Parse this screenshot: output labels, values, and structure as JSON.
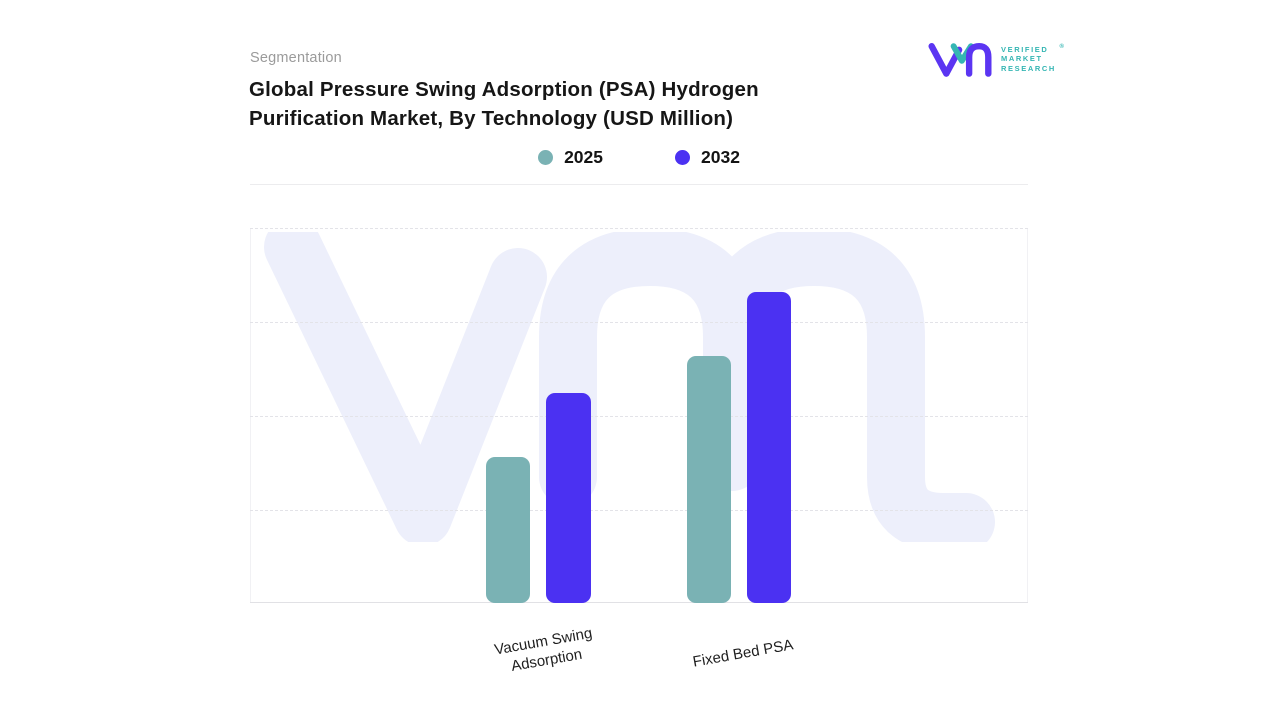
{
  "header": {
    "eyebrow": "Segmentation",
    "title_line1": "Global Pressure Swing Adsorption (PSA) Hydrogen",
    "title_line2": "Purification Market, By Technology (USD Million)"
  },
  "brand": {
    "name_line1": "VERIFIED",
    "name_line2": "MARKET",
    "name_line3": "RESEARCH",
    "registered": "®",
    "purple": "#5b35f2",
    "teal": "#35b6b3"
  },
  "chart_data": {
    "type": "bar",
    "title": "Global Pressure Swing Adsorption (PSA) Hydrogen Purification Market, By Technology (USD Million)",
    "units": "USD Million",
    "categories": [
      "Vacuum Swing Adsorption",
      "Fixed Bed PSA"
    ],
    "category_label_lines": [
      [
        "Vacuum Swing",
        "Adsorption"
      ],
      [
        "Fixed Bed PSA"
      ]
    ],
    "series": [
      {
        "name": "2025",
        "color": "#7ab2b4",
        "values": [
          39,
          66
        ]
      },
      {
        "name": "2032",
        "color": "#4b31f2",
        "values": [
          56,
          83
        ]
      }
    ],
    "xlabel": "",
    "ylabel": "",
    "ylim": [
      0,
      100
    ],
    "axis_tick_labels_visible": false,
    "grid": "horizontal-dashed",
    "legend_position": "top-center",
    "watermark": {
      "text": "VMR",
      "color": "#edeffb"
    }
  }
}
